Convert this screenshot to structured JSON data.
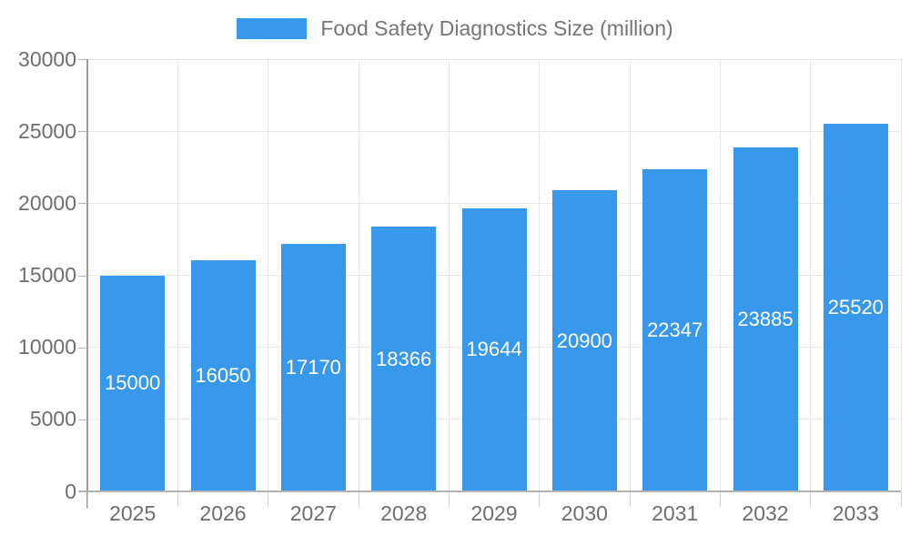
{
  "chart_data": {
    "type": "bar",
    "title": "Food Safety Diagnostics Size (million)",
    "categories": [
      "2025",
      "2026",
      "2027",
      "2028",
      "2029",
      "2030",
      "2031",
      "2032",
      "2033"
    ],
    "values": [
      15000,
      16050,
      17170,
      18366,
      19644,
      20900,
      22347,
      23885,
      25520
    ],
    "xlabel": "",
    "ylabel": "",
    "ylim": [
      0,
      30000
    ],
    "yticks": [
      0,
      5000,
      10000,
      15000,
      20000,
      25000,
      30000
    ],
    "grid": true,
    "legend_position": "top",
    "bar_color": "#3899EC",
    "bar_label_color": "#ffffff",
    "axis_text_color": "#6e6e6e",
    "title_color": "#757575",
    "gridline_color": "#e7e7e7",
    "show_bar_values": true
  }
}
